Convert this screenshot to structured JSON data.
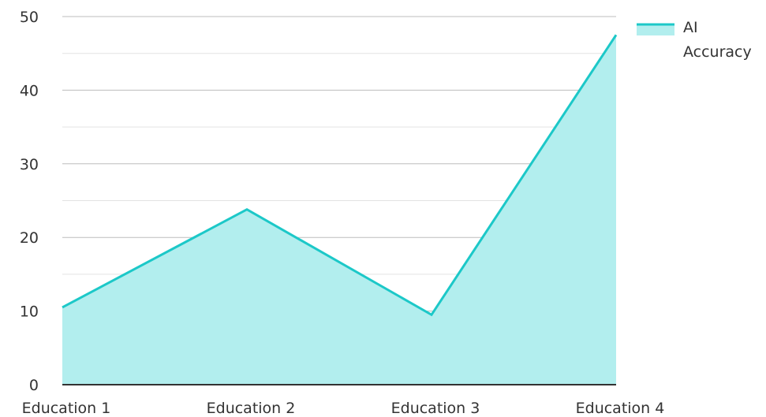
{
  "chart_data": {
    "type": "area",
    "categories": [
      "Education 1",
      "Education 2",
      "Education 3",
      "Education 4"
    ],
    "series": [
      {
        "name": "AI Accuracy",
        "values": [
          10.5,
          23.8,
          9.5,
          47.5
        ]
      }
    ],
    "ylim": [
      0,
      50
    ],
    "yticks": [
      0,
      10,
      20,
      30,
      40,
      50
    ],
    "grid": true,
    "legend": {
      "position": "top-right",
      "label_lines": [
        "AI",
        "Accuracy"
      ]
    },
    "colors": {
      "line": "#1cc8c8",
      "fill": "#b2eeee",
      "grid_major": "#bdbdbd",
      "grid_minor": "#e3e3e3",
      "axis": "#333333"
    }
  }
}
